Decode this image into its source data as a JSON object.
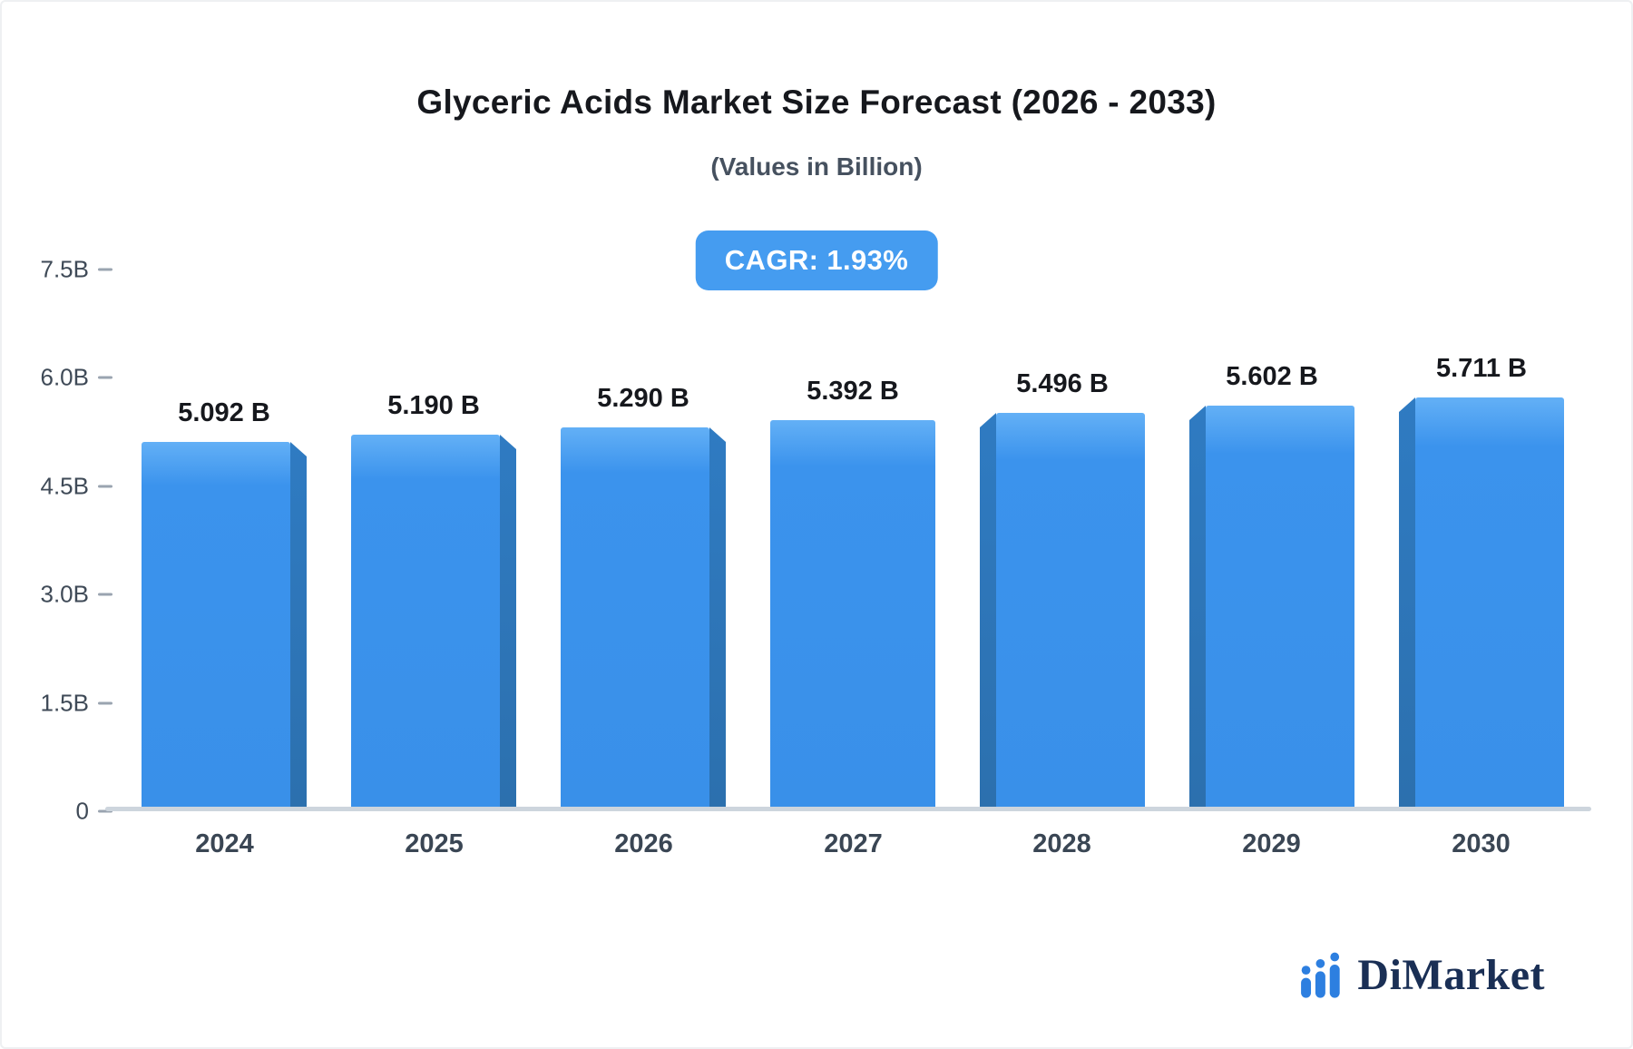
{
  "header": {
    "title": "Glyceric Acids Market Size Forecast (2026 - 2033)",
    "subtitle": "(Values in Billion)",
    "cagr_label": "CAGR: 1.93%"
  },
  "chart_data": {
    "type": "bar",
    "title": "Glyceric Acids Market Size Forecast (2026 - 2033)",
    "subtitle": "(Values in Billion)",
    "categories": [
      "2024",
      "2025",
      "2026",
      "2027",
      "2028",
      "2029",
      "2030"
    ],
    "values": [
      5.092,
      5.19,
      5.29,
      5.392,
      5.496,
      5.602,
      5.711
    ],
    "value_labels": [
      "5.092 B",
      "5.190 B",
      "5.290 B",
      "5.392 B",
      "5.496 B",
      "5.602 B",
      "5.711 B"
    ],
    "xlabel": "",
    "ylabel": "",
    "ylim": [
      0,
      7.5
    ],
    "yticks": [
      0,
      1.5,
      3.0,
      4.5,
      6.0,
      7.5
    ],
    "ytick_labels": [
      "0",
      "1.5B",
      "3.0B",
      "4.5B",
      "6.0B",
      "7.5B"
    ],
    "grid": false,
    "legend": "none",
    "bar_color": "#3b93ed",
    "bar_side_color": "#2d74b6",
    "axis_color": "#cdd5dd"
  },
  "branding": {
    "logo_text": "DiMarket",
    "logo_icon": "bar-chart-logo-icon",
    "logo_text_color": "#1a2f55",
    "logo_icon_color": "#2d7fe0"
  }
}
